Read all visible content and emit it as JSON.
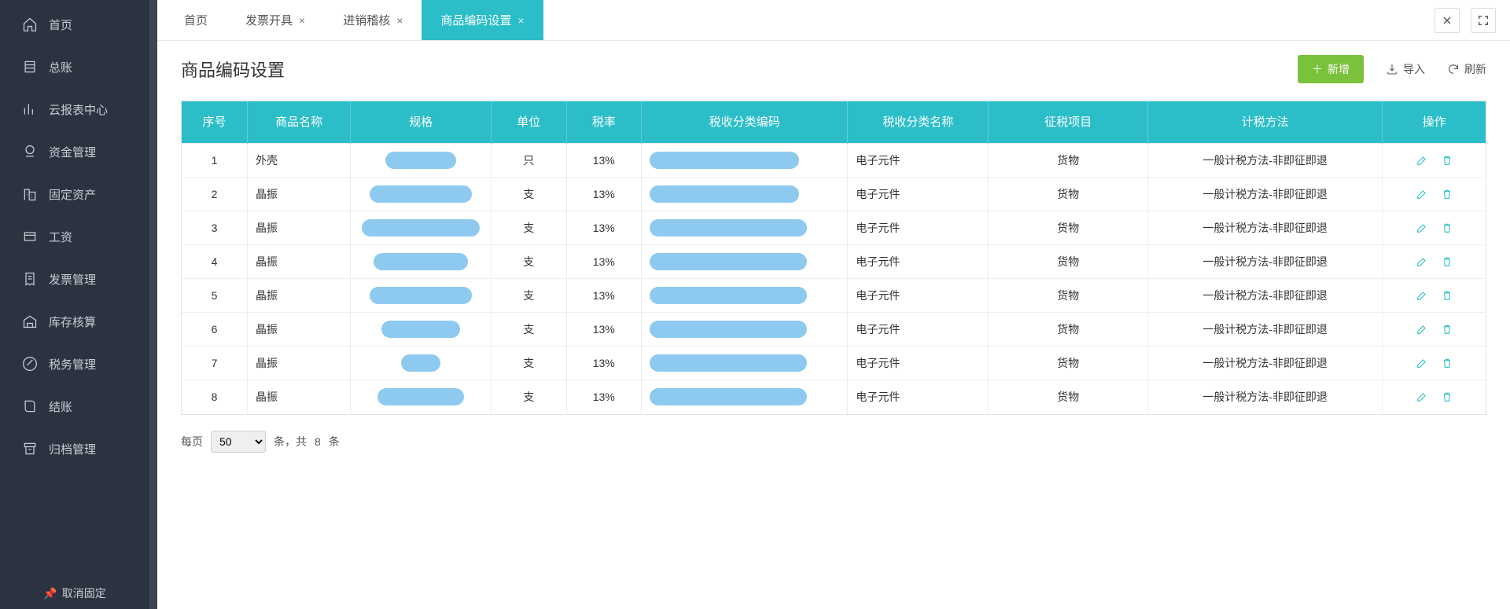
{
  "colors": {
    "sidebar_bg": "#2b3340",
    "sidebar_text": "#c9ced6",
    "teal": "#2bbec8",
    "green": "#7ac23c",
    "redact": "#8ecaf0",
    "border": "#e5e5e5"
  },
  "sidebar": {
    "items": [
      {
        "label": "首页",
        "icon": "home"
      },
      {
        "label": "总账",
        "icon": "ledger"
      },
      {
        "label": "云报表中心",
        "icon": "chart"
      },
      {
        "label": "资金管理",
        "icon": "money"
      },
      {
        "label": "固定资产",
        "icon": "building"
      },
      {
        "label": "工资",
        "icon": "wage"
      },
      {
        "label": "发票管理",
        "icon": "invoice"
      },
      {
        "label": "库存核算",
        "icon": "warehouse"
      },
      {
        "label": "税务管理",
        "icon": "tax"
      },
      {
        "label": "结账",
        "icon": "close-book"
      },
      {
        "label": "归档管理",
        "icon": "archive"
      }
    ],
    "footer_label": "取消固定"
  },
  "tabs": {
    "items": [
      {
        "label": "首页",
        "closable": false,
        "active": false
      },
      {
        "label": "发票开具",
        "closable": true,
        "active": false
      },
      {
        "label": "进销稽核",
        "closable": true,
        "active": false
      },
      {
        "label": "商品编码设置",
        "closable": true,
        "active": true
      }
    ]
  },
  "page": {
    "title": "商品编码设置",
    "add_label": "新增",
    "import_label": "导入",
    "refresh_label": "刷新"
  },
  "table": {
    "columns": [
      "序号",
      "商品名称",
      "规格",
      "单位",
      "税率",
      "税收分类编码",
      "税收分类名称",
      "征税项目",
      "计税方法",
      "操作"
    ],
    "rows": [
      {
        "seq": "1",
        "name": "外壳",
        "spec_redact_w": 90,
        "unit": "只",
        "rate": "13%",
        "code_redact_w": 190,
        "cat": "电子元件",
        "proj": "货物",
        "method": "一般计税方法-非即征即退"
      },
      {
        "seq": "2",
        "name": "晶振",
        "spec_redact_w": 130,
        "unit": "支",
        "rate": "13%",
        "code_redact_w": 190,
        "cat": "电子元件",
        "proj": "货物",
        "method": "一般计税方法-非即征即退"
      },
      {
        "seq": "3",
        "name": "晶振",
        "spec_redact_w": 150,
        "unit": "支",
        "rate": "13%",
        "code_redact_w": 200,
        "cat": "电子元件",
        "proj": "货物",
        "method": "一般计税方法-非即征即退"
      },
      {
        "seq": "4",
        "name": "晶振",
        "spec_redact_w": 120,
        "unit": "支",
        "rate": "13%",
        "code_redact_w": 200,
        "cat": "电子元件",
        "proj": "货物",
        "method": "一般计税方法-非即征即退"
      },
      {
        "seq": "5",
        "name": "晶振",
        "spec_redact_w": 130,
        "unit": "支",
        "rate": "13%",
        "code_redact_w": 200,
        "cat": "电子元件",
        "proj": "货物",
        "method": "一般计税方法-非即征即退"
      },
      {
        "seq": "6",
        "name": "晶振",
        "spec_redact_w": 100,
        "unit": "支",
        "rate": "13%",
        "code_redact_w": 200,
        "cat": "电子元件",
        "proj": "货物",
        "method": "一般计税方法-非即征即退"
      },
      {
        "seq": "7",
        "name": "晶振",
        "spec_redact_w": 50,
        "unit": "支",
        "rate": "13%",
        "code_redact_w": 200,
        "cat": "电子元件",
        "proj": "货物",
        "method": "一般计税方法-非即征即退"
      },
      {
        "seq": "8",
        "name": "晶振",
        "spec_redact_w": 110,
        "unit": "支",
        "rate": "13%",
        "code_redact_w": 200,
        "cat": "电子元件",
        "proj": "货物",
        "method": "一般计税方法-非即征即退"
      }
    ]
  },
  "pager": {
    "per_page_label": "每页",
    "per_page_value": "50",
    "suffix_label_a": "条，共",
    "total": "8",
    "suffix_label_b": "条"
  }
}
